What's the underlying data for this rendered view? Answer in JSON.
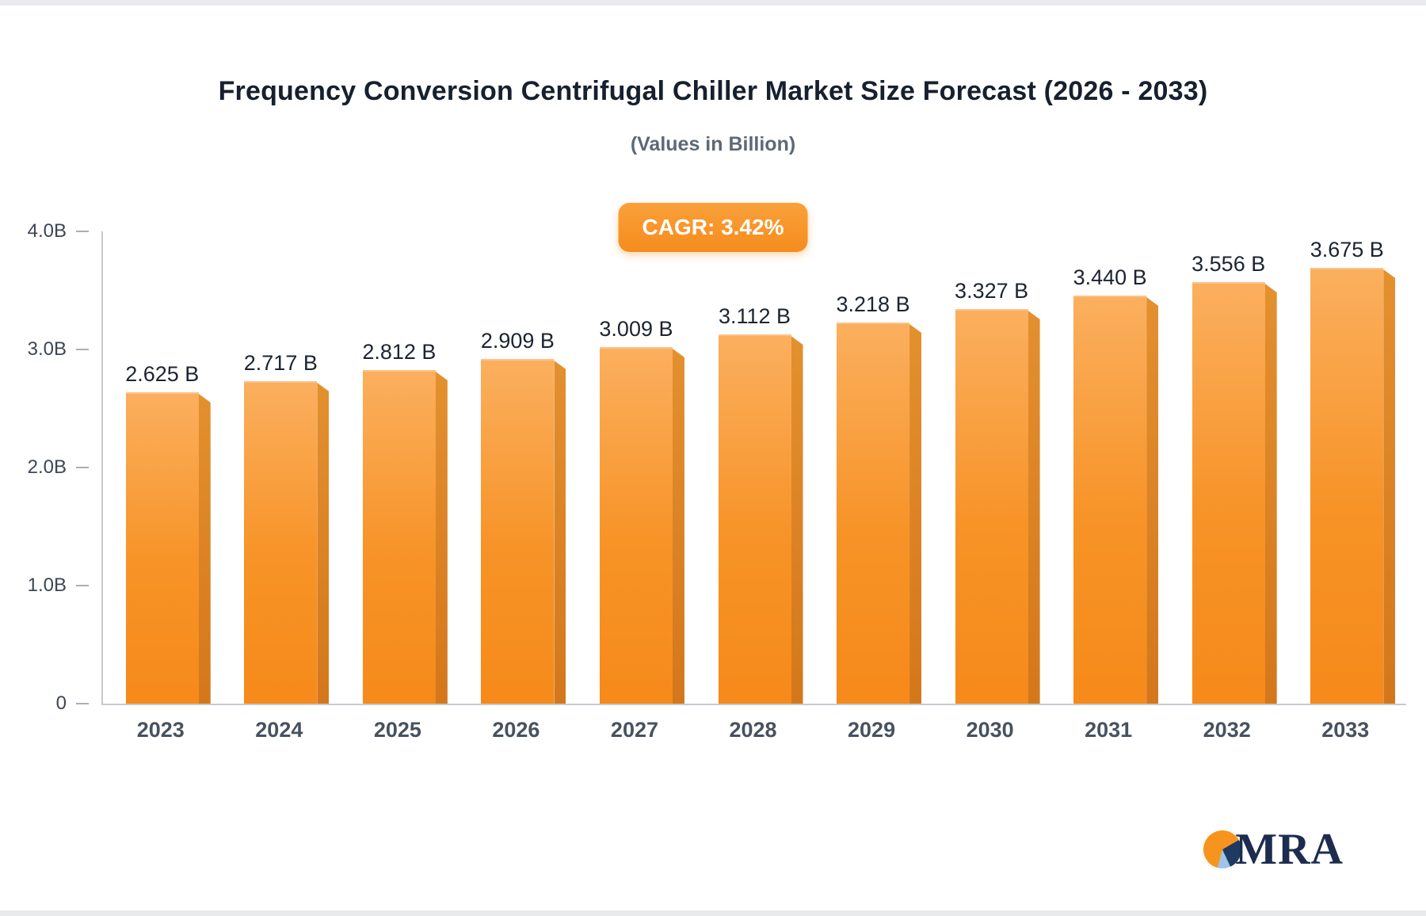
{
  "title": "Frequency Conversion Centrifugal Chiller Market Size Forecast (2026 - 2033)",
  "subtitle": "(Values in Billion)",
  "cagr_badge": "CAGR: 3.42%",
  "brand": {
    "name": "MRA",
    "icon": "pie-chart-icon"
  },
  "colors": {
    "bar_top": "#FBAF5E",
    "bar_bottom": "#F68A1A",
    "bar_side": "#D4771B",
    "badge": "#F7941E",
    "title_text": "#16202E",
    "subtitle_text": "#5D6878",
    "axis_line": "#C6CAD0",
    "logo_navy": "#1E2C4F",
    "logo_lightblue": "#9DC3E6"
  },
  "chart_data": {
    "type": "bar",
    "title": "Frequency Conversion Centrifugal Chiller Market Size Forecast (2026 - 2033)",
    "subtitle": "(Values in Billion)",
    "categories": [
      "2023",
      "2024",
      "2025",
      "2026",
      "2027",
      "2028",
      "2029",
      "2030",
      "2031",
      "2032",
      "2033"
    ],
    "values": [
      2.625,
      2.717,
      2.812,
      2.909,
      3.009,
      3.112,
      3.218,
      3.327,
      3.44,
      3.556,
      3.675
    ],
    "value_labels": [
      "2.625 B",
      "2.717 B",
      "2.812 B",
      "2.909 B",
      "3.009 B",
      "3.112 B",
      "3.218 B",
      "3.327 B",
      "3.440 B",
      "3.556 B",
      "3.675 B"
    ],
    "xlabel": "",
    "ylabel": "",
    "ylim": [
      0,
      4
    ],
    "yticks": [
      {
        "v": 0,
        "label": "0"
      },
      {
        "v": 1,
        "label": "1.0B"
      },
      {
        "v": 2,
        "label": "2.0B"
      },
      {
        "v": 3,
        "label": "3.0B"
      },
      {
        "v": 4,
        "label": "4.0B"
      }
    ],
    "grid": false,
    "legend": false,
    "annotation": "CAGR: 3.42%"
  }
}
